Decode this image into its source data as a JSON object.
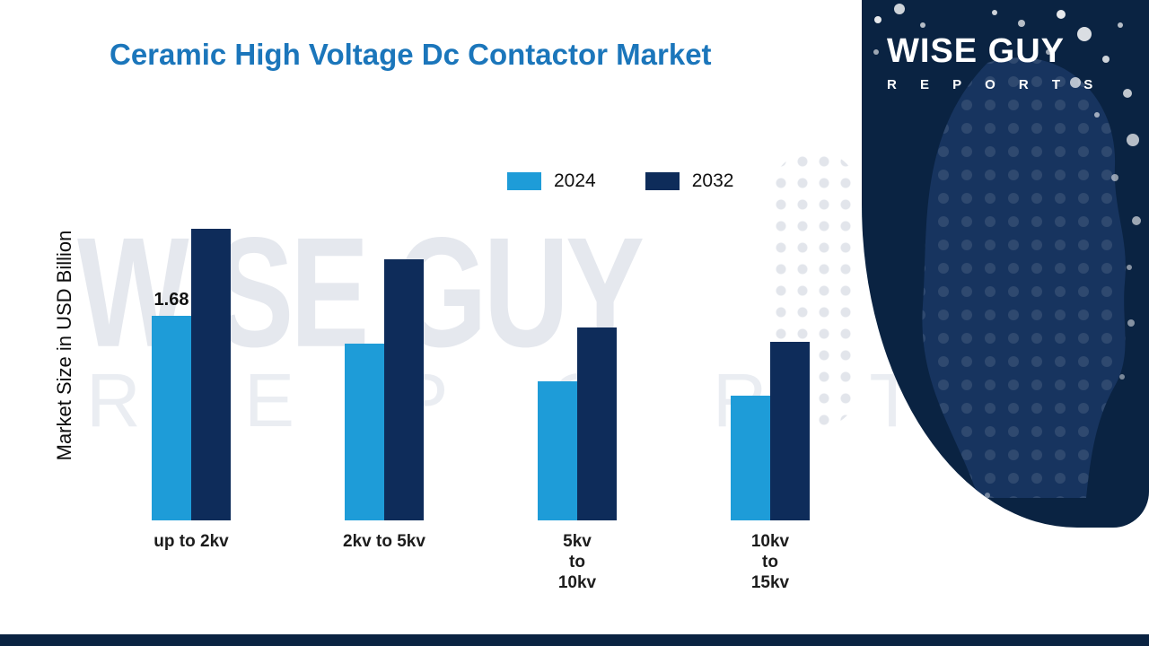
{
  "header": {
    "title": "Ceramic High Voltage Dc Contactor Market"
  },
  "logo": {
    "line1": "WISE GUY",
    "line2": "R E P O R T S"
  },
  "watermark": {
    "line1": "WISE GUY",
    "line2": "R E P O R T S"
  },
  "colors": {
    "title_blue": "#1b76bb",
    "series_2024": "#1e9cd8",
    "series_2032": "#0e2c5a",
    "corner_navy": "#0a2342",
    "watermark_gray": "#e5e8ee"
  },
  "chart_data": {
    "type": "bar",
    "title": "Ceramic High Voltage Dc Contactor Market",
    "xlabel": "",
    "ylabel": "Market Size in USD Billion",
    "ylim": [
      0,
      2.6
    ],
    "grid": false,
    "legend_position": "top",
    "categories": [
      "up to 2kv",
      "2kv to 5kv",
      "5kv to 10kv",
      "10kv to 15kv"
    ],
    "category_lines": [
      [
        "up to 2kv"
      ],
      [
        "2kv to 5kv"
      ],
      [
        "5kv",
        "to",
        "10kv"
      ],
      [
        "10kv",
        "to",
        "15kv"
      ]
    ],
    "series": [
      {
        "name": "2024",
        "color": "#1e9cd8",
        "values": [
          1.68,
          1.45,
          1.14,
          1.02
        ]
      },
      {
        "name": "2032",
        "color": "#0e2c5a",
        "values": [
          2.39,
          2.14,
          1.58,
          1.46
        ]
      }
    ],
    "data_labels": [
      {
        "series": "2024",
        "category": "up to 2kv",
        "value": "1.68"
      }
    ]
  }
}
